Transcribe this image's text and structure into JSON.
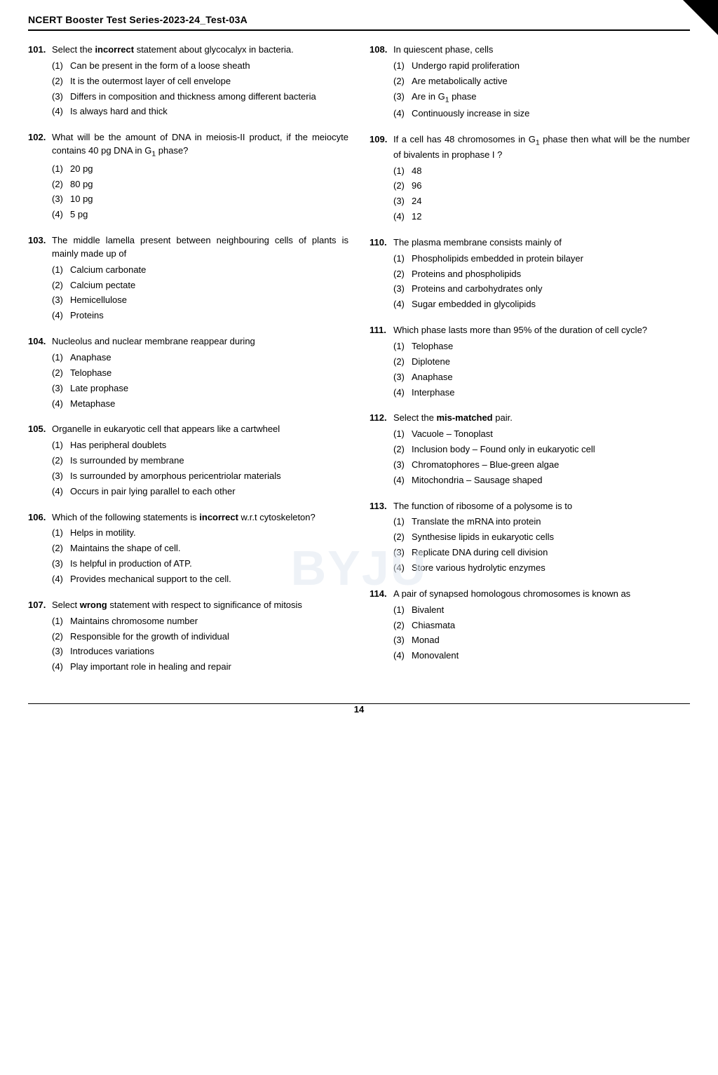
{
  "header": "NCERT Booster Test Series-2023-24_Test-03A",
  "page_number": "14",
  "watermark": "BYJU",
  "left": [
    {
      "num": "101.",
      "text": "Select the <strong>incorrect</strong> statement about glycocalyx in bacteria.",
      "opts": [
        "Can be present in the form of a loose sheath",
        "It is the outermost layer of cell envelope",
        "Differs in composition and thickness among different bacteria",
        "Is always hard and thick"
      ]
    },
    {
      "num": "102.",
      "text": "What will be the amount of DNA in meiosis-II product, if the meiocyte contains 40 pg DNA in G<span class='sub'>1</span> phase?",
      "opts": [
        "20 pg",
        "80 pg",
        "10 pg",
        "5 pg"
      ]
    },
    {
      "num": "103.",
      "text": "The middle lamella present between neighbouring cells of plants is mainly made up of",
      "opts": [
        "Calcium carbonate",
        "Calcium pectate",
        "Hemicellulose",
        "Proteins"
      ]
    },
    {
      "num": "104.",
      "text": "Nucleolus and nuclear membrane reappear during",
      "opts": [
        "Anaphase",
        "Telophase",
        "Late prophase",
        "Metaphase"
      ]
    },
    {
      "num": "105.",
      "text": "Organelle in eukaryotic cell that appears like a cartwheel",
      "opts": [
        "Has peripheral doublets",
        "Is surrounded by membrane",
        "Is surrounded by amorphous pericentriolar materials",
        "Occurs in pair lying parallel to each other"
      ]
    },
    {
      "num": "106.",
      "text": "Which of the following statements is <strong>incorrect</strong> w.r.t cytoskeleton?",
      "opts": [
        "Helps in motility.",
        "Maintains the shape of cell.",
        "Is helpful in production of ATP.",
        "Provides mechanical support to the cell."
      ]
    },
    {
      "num": "107.",
      "text": "Select <strong>wrong</strong> statement with respect to significance of mitosis",
      "opts": [
        "Maintains chromosome number",
        "Responsible for the growth of individual",
        "Introduces variations",
        "Play important role in healing and repair"
      ]
    }
  ],
  "right": [
    {
      "num": "108.",
      "text": "In quiescent phase, cells",
      "opts": [
        "Undergo rapid proliferation",
        "Are metabolically active",
        "Are in G<span class='sub'>1</span> phase",
        "Continuously increase in size"
      ]
    },
    {
      "num": "109.",
      "text": "If a cell has 48 chromosomes in G<span class='sub'>1</span> phase then what will be the number of bivalents in prophase I ?",
      "opts": [
        "48",
        "96",
        "24",
        "12"
      ]
    },
    {
      "num": "110.",
      "text": "The plasma membrane consists mainly of",
      "opts": [
        "Phospholipids embedded in protein bilayer",
        "Proteins and phospholipids",
        "Proteins and carbohydrates only",
        "Sugar embedded in glycolipids"
      ]
    },
    {
      "num": "111.",
      "text": "Which phase lasts more than 95% of the duration of cell cycle?",
      "opts": [
        "Telophase",
        "Diplotene",
        "Anaphase",
        "Interphase"
      ]
    },
    {
      "num": "112.",
      "text": "Select the <strong>mis-matched</strong> pair.",
      "opts": [
        "Vacuole – Tonoplast",
        "Inclusion body – Found only in eukaryotic cell",
        "Chromatophores – Blue-green algae",
        "Mitochondria – Sausage shaped"
      ]
    },
    {
      "num": "113.",
      "text": "The function of ribosome of a polysome is to",
      "opts": [
        "Translate the mRNA into protein",
        "Synthesise lipids in eukaryotic cells",
        "Replicate DNA during cell division",
        "Store various hydrolytic enzymes"
      ]
    },
    {
      "num": "114.",
      "text": "A pair of synapsed homologous chromosomes is known as",
      "opts": [
        "Bivalent",
        "Chiasmata",
        "Monad",
        "Monovalent"
      ]
    }
  ]
}
